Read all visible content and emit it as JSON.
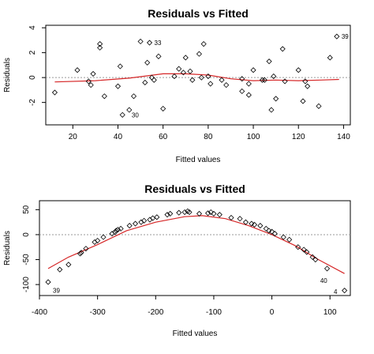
{
  "chart_data": [
    {
      "type": "scatter",
      "title": "Residuals vs Fitted",
      "xlabel": "Fitted values",
      "ylabel": "Residuals",
      "xlim": [
        8,
        143
      ],
      "ylim": [
        -3.8,
        4.2
      ],
      "xticks": [
        20,
        40,
        60,
        80,
        100,
        120,
        140
      ],
      "yticks": [
        -2,
        0,
        2,
        4
      ],
      "reference_line": 0,
      "point_labels": [
        {
          "text": "33",
          "x": 54,
          "y": 2.8
        },
        {
          "text": "30",
          "x": 44,
          "y": -3.0
        },
        {
          "text": "39",
          "x": 137,
          "y": 3.3
        }
      ],
      "points": [
        [
          12,
          -1.2
        ],
        [
          22,
          0.6
        ],
        [
          27,
          -0.3
        ],
        [
          28,
          -0.6
        ],
        [
          29,
          0.3
        ],
        [
          32,
          2.4
        ],
        [
          32,
          2.7
        ],
        [
          34,
          -1.5
        ],
        [
          40,
          -0.7
        ],
        [
          41,
          0.9
        ],
        [
          42,
          -3.0
        ],
        [
          45,
          -2.6
        ],
        [
          47,
          -1.5
        ],
        [
          50,
          2.9
        ],
        [
          52,
          -0.4
        ],
        [
          53,
          1.2
        ],
        [
          54,
          2.8
        ],
        [
          55,
          0.0
        ],
        [
          56,
          -0.2
        ],
        [
          58,
          1.7
        ],
        [
          60,
          -2.5
        ],
        [
          65,
          0.1
        ],
        [
          67,
          0.7
        ],
        [
          69,
          0.4
        ],
        [
          70,
          1.6
        ],
        [
          72,
          0.5
        ],
        [
          73,
          -0.2
        ],
        [
          76,
          1.9
        ],
        [
          77,
          0.0
        ],
        [
          78,
          2.7
        ],
        [
          80,
          0.1
        ],
        [
          81,
          -0.5
        ],
        [
          86,
          -0.2
        ],
        [
          88,
          -0.6
        ],
        [
          95,
          -0.1
        ],
        [
          95,
          -1.1
        ],
        [
          98,
          -0.5
        ],
        [
          98,
          -1.4
        ],
        [
          100,
          0.6
        ],
        [
          104,
          -0.2
        ],
        [
          105,
          -0.2
        ],
        [
          107,
          1.3
        ],
        [
          108,
          -2.6
        ],
        [
          109,
          0.1
        ],
        [
          110,
          -1.7
        ],
        [
          113,
          2.3
        ],
        [
          114,
          -0.3
        ],
        [
          120,
          0.6
        ],
        [
          122,
          -1.9
        ],
        [
          123,
          -0.3
        ],
        [
          124,
          -0.7
        ],
        [
          129,
          -2.3
        ],
        [
          134,
          1.6
        ],
        [
          137,
          3.3
        ]
      ],
      "smooth": [
        [
          12,
          -0.35
        ],
        [
          30,
          -0.25
        ],
        [
          45,
          -0.05
        ],
        [
          60,
          0.3
        ],
        [
          70,
          0.3
        ],
        [
          80,
          0.2
        ],
        [
          90,
          -0.1
        ],
        [
          100,
          -0.25
        ],
        [
          110,
          -0.2
        ],
        [
          120,
          -0.25
        ],
        [
          130,
          -0.2
        ],
        [
          138,
          -0.15
        ]
      ]
    },
    {
      "type": "scatter",
      "title": "Residuals vs Fitted",
      "xlabel": "Fitted values",
      "ylabel": "Residuals",
      "xlim": [
        -400,
        135
      ],
      "ylim": [
        -122,
        68
      ],
      "xticks": [
        -400,
        -300,
        -200,
        -100,
        0,
        100
      ],
      "yticks": [
        -100,
        -50,
        0,
        50
      ],
      "reference_line": 0,
      "point_labels": [
        {
          "text": "39",
          "x": -385,
          "y": -112
        },
        {
          "text": "40",
          "x": 75,
          "y": -92
        },
        {
          "text": "4",
          "x": 118,
          "y": -120
        }
      ],
      "points": [
        [
          -385,
          -95
        ],
        [
          -365,
          -70
        ],
        [
          -350,
          -60
        ],
        [
          -330,
          -38
        ],
        [
          -328,
          -36
        ],
        [
          -320,
          -28
        ],
        [
          -305,
          -15
        ],
        [
          -300,
          -12
        ],
        [
          -290,
          -5
        ],
        [
          -275,
          2
        ],
        [
          -270,
          5
        ],
        [
          -268,
          8
        ],
        [
          -265,
          10
        ],
        [
          -260,
          12
        ],
        [
          -245,
          18
        ],
        [
          -235,
          22
        ],
        [
          -225,
          25
        ],
        [
          -220,
          28
        ],
        [
          -210,
          30
        ],
        [
          -205,
          33
        ],
        [
          -198,
          35
        ],
        [
          -180,
          40
        ],
        [
          -175,
          42
        ],
        [
          -160,
          44
        ],
        [
          -150,
          45
        ],
        [
          -145,
          47
        ],
        [
          -142,
          45
        ],
        [
          -125,
          42
        ],
        [
          -110,
          43
        ],
        [
          -105,
          45
        ],
        [
          -100,
          42
        ],
        [
          -90,
          40
        ],
        [
          -70,
          34
        ],
        [
          -55,
          32
        ],
        [
          -45,
          25
        ],
        [
          -35,
          22
        ],
        [
          -30,
          20
        ],
        [
          -20,
          18
        ],
        [
          -10,
          12
        ],
        [
          -5,
          8
        ],
        [
          0,
          6
        ],
        [
          5,
          2
        ],
        [
          20,
          -5
        ],
        [
          30,
          -10
        ],
        [
          45,
          -25
        ],
        [
          55,
          -30
        ],
        [
          60,
          -35
        ],
        [
          70,
          -45
        ],
        [
          75,
          -50
        ],
        [
          95,
          -68
        ],
        [
          125,
          -112
        ]
      ],
      "smooth": [
        [
          -385,
          -68
        ],
        [
          -350,
          -45
        ],
        [
          -300,
          -20
        ],
        [
          -250,
          8
        ],
        [
          -200,
          25
        ],
        [
          -150,
          36
        ],
        [
          -120,
          38
        ],
        [
          -80,
          32
        ],
        [
          -40,
          18
        ],
        [
          0,
          0
        ],
        [
          40,
          -22
        ],
        [
          80,
          -50
        ],
        [
          125,
          -78
        ]
      ]
    }
  ]
}
